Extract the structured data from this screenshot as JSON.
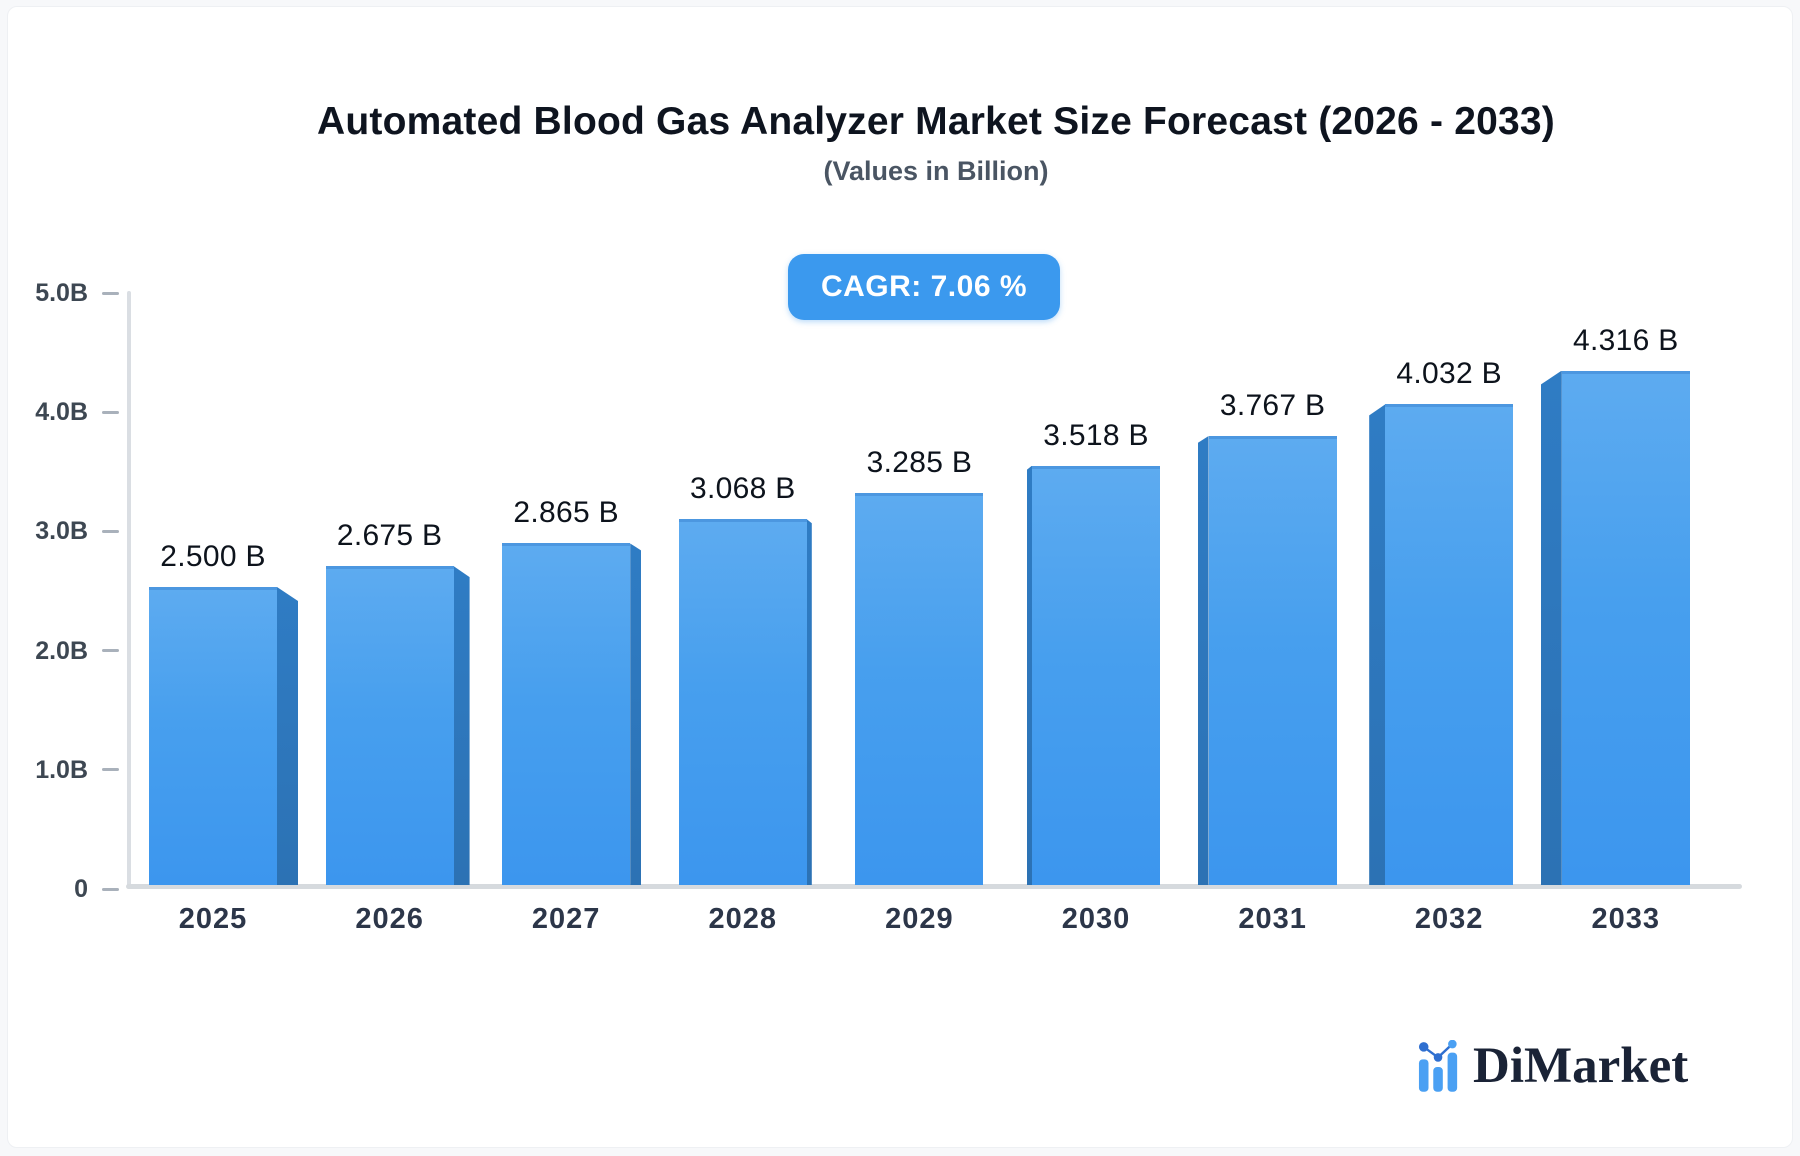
{
  "page": {
    "background": "#f7f8fa",
    "card_background": "#ffffff"
  },
  "header": {
    "title": "Automated Blood Gas Analyzer Market Size Forecast (2026 - 2033)",
    "subtitle": "(Values in Billion)"
  },
  "cagr_badge": {
    "label": "CAGR: 7.06 %",
    "background": "#3b99ee",
    "text_color": "#ffffff"
  },
  "chart_data": {
    "type": "bar",
    "title": "Automated Blood Gas Analyzer Market Size Forecast (2026 - 2033)",
    "subtitle": "(Values in Billion)",
    "categories": [
      "2025",
      "2026",
      "2027",
      "2028",
      "2029",
      "2030",
      "2031",
      "2032",
      "2033"
    ],
    "values": [
      2.5,
      2.675,
      2.865,
      3.068,
      3.285,
      3.518,
      3.767,
      4.032,
      4.316
    ],
    "value_labels": [
      "2.500 B",
      "2.675 B",
      "2.865 B",
      "3.068 B",
      "3.285 B",
      "3.518 B",
      "3.767 B",
      "4.032 B",
      "4.316 B"
    ],
    "xlabel": "",
    "ylabel": "",
    "ylim": [
      0,
      5
    ],
    "y_ticks": [
      {
        "value": 0,
        "label": "0"
      },
      {
        "value": 1,
        "label": "1.0B"
      },
      {
        "value": 2,
        "label": "2.0B"
      },
      {
        "value": 3,
        "label": "3.0B"
      },
      {
        "value": 4,
        "label": "4.0B"
      },
      {
        "value": 5,
        "label": "5.0B"
      }
    ],
    "grid": false,
    "legend": false,
    "bar_style": "3d-perspective-center",
    "colors": {
      "bar_front_top": "#5dabf0",
      "bar_front_bottom": "#3c96ee",
      "bar_top_edge": "#4c97e0",
      "bar_side": "#2d76bb",
      "axis_line": "#d6dade",
      "tick_dash": "#a9b1bb",
      "ytick_label": "#3d4752",
      "category_label": "#2c3649",
      "value_label": "#0d131c"
    }
  },
  "branding": {
    "name": "DiMarket",
    "icon": "bar-line-chart-icon",
    "name_color": "#1a2336",
    "icon_bar_color": "#4aa0f3",
    "icon_dot_color": "#2f6fd0"
  }
}
